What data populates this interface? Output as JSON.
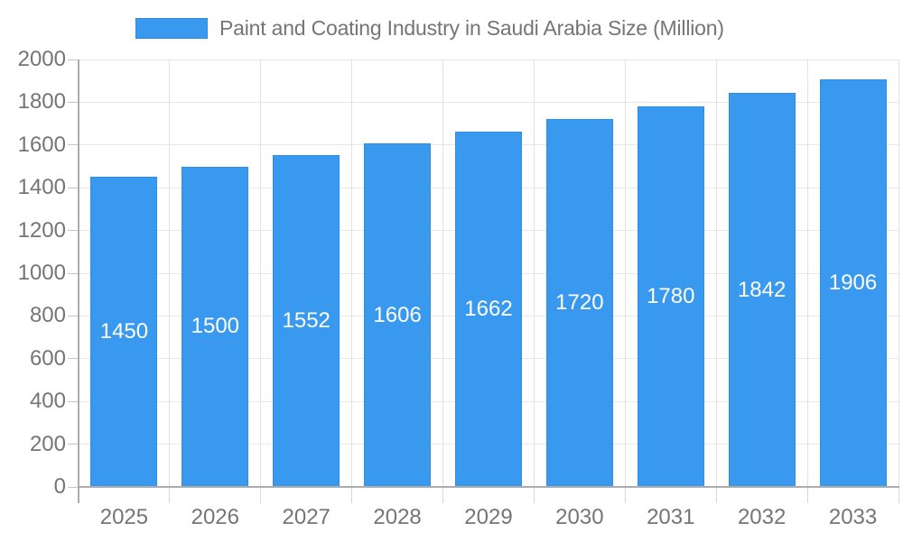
{
  "legend": {
    "label": "Paint and Coating Industry in Saudi Arabia Size (Million)"
  },
  "chart_data": {
    "type": "bar",
    "title": "Paint and Coating Industry in Saudi Arabia Size (Million)",
    "categories": [
      "2025",
      "2026",
      "2027",
      "2028",
      "2029",
      "2030",
      "2031",
      "2032",
      "2033"
    ],
    "values": [
      1450,
      1500,
      1552,
      1606,
      1662,
      1720,
      1780,
      1842,
      1906
    ],
    "series": [
      {
        "name": "Paint and Coating Industry in Saudi Arabia Size (Million)",
        "values": [
          1450,
          1500,
          1552,
          1606,
          1662,
          1720,
          1780,
          1842,
          1906
        ]
      }
    ],
    "xlabel": "",
    "ylabel": "",
    "ylim": [
      0,
      2000
    ],
    "ytick_step": 200,
    "grid": true,
    "legend_position": "top-center",
    "value_labels": "inside-center",
    "colors": {
      "bar": "#3999EE",
      "bar_value_label": "#FFFFFF",
      "axis_line": "#ACACAC",
      "grid_line_h": "#E8E8E8",
      "grid_line_v": "#E2E2E2",
      "tick_y": "#C6C6C6",
      "tick_x": "#D8D8D8",
      "axis_label": "#757575",
      "legend_text": "#757575"
    }
  }
}
